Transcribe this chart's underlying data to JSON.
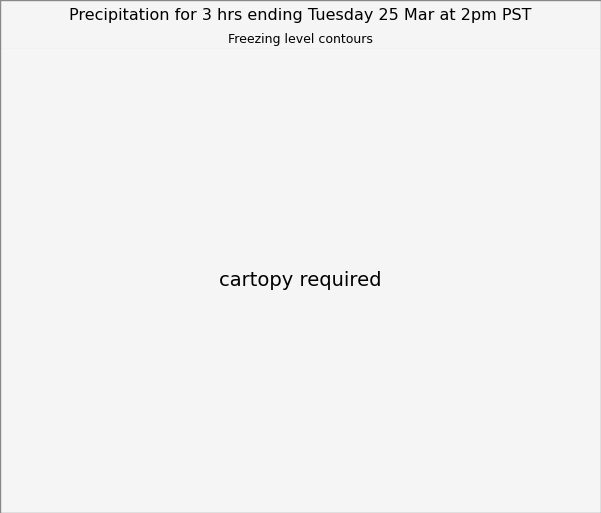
{
  "title": "Precipitation for 3 hrs ending Tuesday 25 Mar at 2pm PST",
  "subtitle": "Freezing level contours",
  "title_fontsize": 11.5,
  "subtitle_fontsize": 9,
  "fig_width": 6.01,
  "fig_height": 5.13,
  "dpi": 100,
  "header_bg": "#f5f5f5",
  "ocean_color": "#dce0f0",
  "land_color": "#a0a0a0",
  "contour_color": "#dd0000",
  "contour_lw": 1.0,
  "lon_min": 110.0,
  "lon_max": 135.0,
  "lat_min": 3.0,
  "lat_max": 25.0,
  "precip_color": "#c0c4e0",
  "precip_alpha": 0.65,
  "contour_label_size": 6.0,
  "border_color": "#aaaaaa"
}
